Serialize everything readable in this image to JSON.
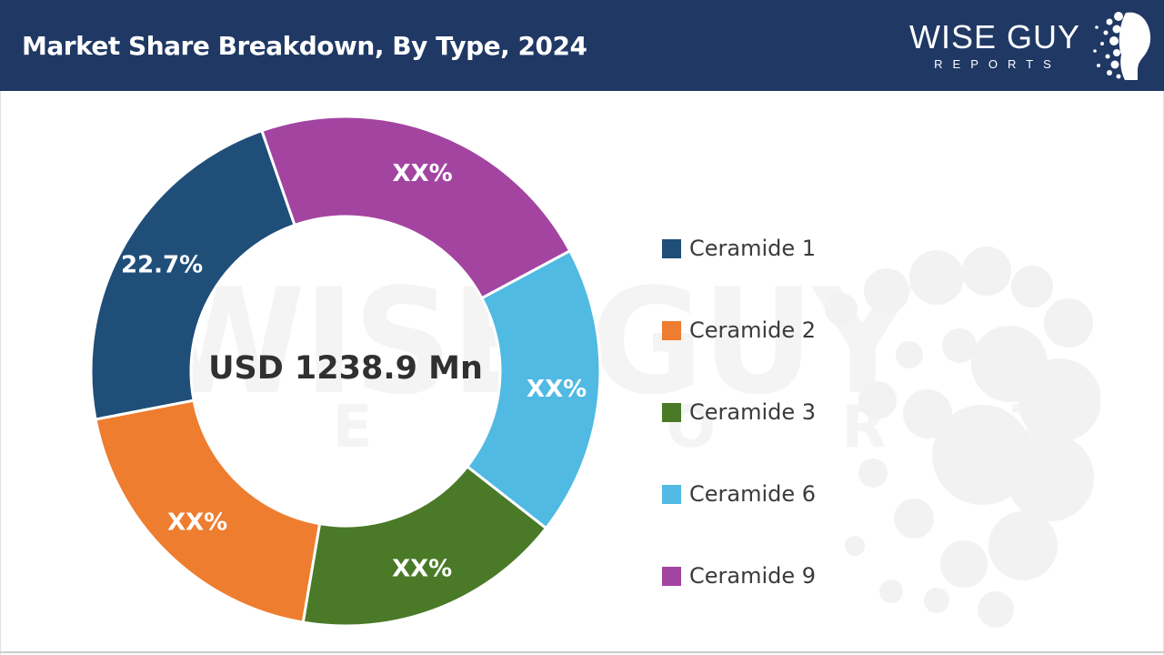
{
  "header": {
    "title": "Market Share Breakdown, By Type, 2024",
    "logo": {
      "line1": "WISE GUY",
      "line2": "REPORTS"
    }
  },
  "watermark": {
    "line1": "WISE GUY",
    "line2": "R E P O R T S"
  },
  "theme": {
    "header_bg": "#1f3864",
    "legend_text_color": "#3a3a3a",
    "center_text_color": "#303030",
    "segment_label_color": "#ffffff"
  },
  "chart_data": {
    "type": "donut",
    "title": "Market Share Breakdown, By Type, 2024",
    "center_label": "USD 1238.9 Mn",
    "legend_position": "right",
    "segments": [
      {
        "name": "Ceramide 1",
        "value": 22.7,
        "display_label": "22.7%",
        "color": "#1f4e79"
      },
      {
        "name": "Ceramide 2",
        "value": 19.3,
        "display_label": "XX%",
        "color": "#ee7d2f"
      },
      {
        "name": "Ceramide 3",
        "value": 17.1,
        "display_label": "XX%",
        "color": "#4a7a28"
      },
      {
        "name": "Ceramide 6",
        "value": 18.4,
        "display_label": "XX%",
        "color": "#50bae2"
      },
      {
        "name": "Ceramide 9",
        "value": 22.5,
        "display_label": "XX%",
        "color": "#a344a1"
      }
    ]
  }
}
